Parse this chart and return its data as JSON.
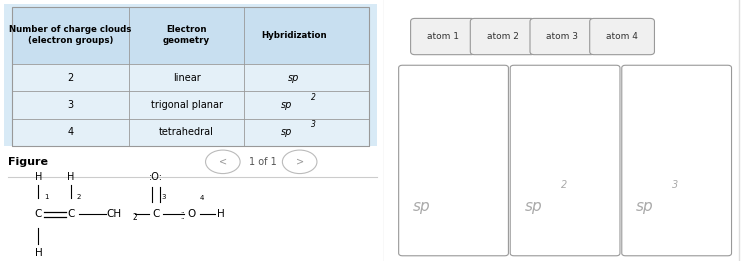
{
  "background_color": "#ffffff",
  "table": {
    "header_bg": "#c8dff0",
    "cell_bg": "#e4f0f8",
    "outer_bg": "#d8eaf6",
    "headers": [
      "Number of charge clouds\n(electron groups)",
      "Electron\ngeometry",
      "Hybridization"
    ],
    "rows": [
      [
        "2",
        "linear",
        "sp"
      ],
      [
        "3",
        "trigonal planar",
        "sp2"
      ],
      [
        "4",
        "tetrahedral",
        "sp3"
      ]
    ]
  },
  "atom_buttons": [
    "atom 1",
    "atom 2",
    "atom 3",
    "atom 4"
  ],
  "drop_box_labels": [
    "sp",
    "sp2",
    "sp3"
  ]
}
